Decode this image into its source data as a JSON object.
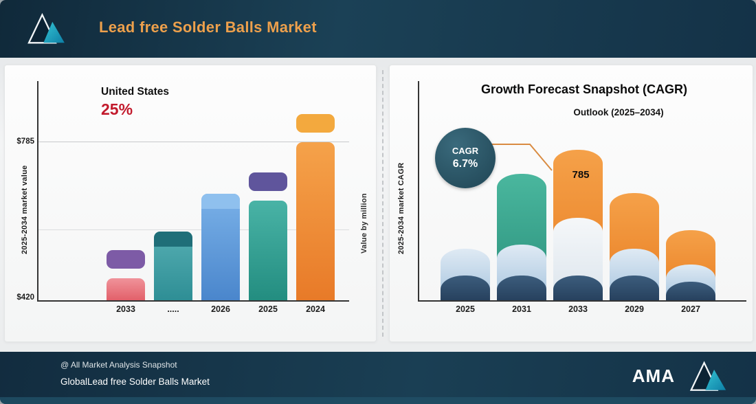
{
  "header": {
    "title": "Lead free Solder Balls Market"
  },
  "middle_axis_label": "Value by million",
  "footer": {
    "line1": "@ All Market Analysis Snapshot",
    "line2": "GlobalLead free Solder Balls Market",
    "brand": "AMA"
  },
  "chart_data": [
    {
      "type": "bar",
      "title": "United States",
      "annotation": "25%",
      "annotation_color": "#c21a2c",
      "ylabel": "2025-2034 market value",
      "yticks": [
        {
          "label": "$785",
          "value": 785
        },
        {
          "label": "$420",
          "value": 420
        }
      ],
      "ylim": [
        415,
        925
      ],
      "categories": [
        "2033",
        ".....",
        "2026",
        "2025",
        "2024"
      ],
      "values": [
        466,
        576,
        664,
        648,
        785
      ],
      "bar_colors": [
        [
          "#f0939a",
          "#e2606a"
        ],
        [
          "#55aeb2",
          "#2e8e95"
        ],
        [
          "#7ab1e8",
          "#4a86cc"
        ],
        [
          "#49b3a6",
          "#238d80"
        ],
        [
          "#f5a24a",
          "#e87a28"
        ]
      ],
      "caps": [
        {
          "style": "detached",
          "color": "#7d5ba6"
        },
        {
          "style": "attached",
          "color": "#1f6e78"
        },
        {
          "style": "attached",
          "color": "#8fc0ee"
        },
        {
          "style": "detached",
          "color": "#5f559c"
        },
        {
          "style": "detached",
          "color": "#f3a93e"
        }
      ]
    },
    {
      "type": "stacked-bar",
      "title": "Growth Forecast Snapshot (CAGR)",
      "subtitle": "Outlook (2025–2034)",
      "ylabel": "2025-2034 market CAGR",
      "badge": {
        "label": "CAGR",
        "value": "6.7%"
      },
      "data_label": "785",
      "categories": [
        "2025",
        "2031",
        "2033",
        "2029",
        "2027"
      ],
      "totals": [
        270,
        660,
        785,
        560,
        365
      ],
      "segments": [
        [
          [
            130,
            "navy"
          ],
          [
            140,
            "lightblue"
          ]
        ],
        [
          [
            130,
            "navy"
          ],
          [
            160,
            "lightblue"
          ],
          [
            370,
            "teal"
          ]
        ],
        [
          [
            130,
            "navy"
          ],
          [
            300,
            "pale"
          ],
          [
            355,
            "orange"
          ]
        ],
        [
          [
            130,
            "navy"
          ],
          [
            140,
            "lightblue"
          ],
          [
            290,
            "orange"
          ]
        ],
        [
          [
            95,
            "navy"
          ],
          [
            90,
            "lightblue"
          ],
          [
            180,
            "orange"
          ]
        ]
      ],
      "palette": {
        "navy": [
          "#3c5d7d",
          "#27415e"
        ],
        "lightblue": [
          "#dfeaf4",
          "#a6c4de"
        ],
        "pale": [
          "#f5f7f9",
          "#dce5ed"
        ],
        "teal": [
          "#4ab79e",
          "#2a8f7b"
        ],
        "orange": [
          "#f5a149",
          "#e87d22"
        ]
      }
    }
  ]
}
